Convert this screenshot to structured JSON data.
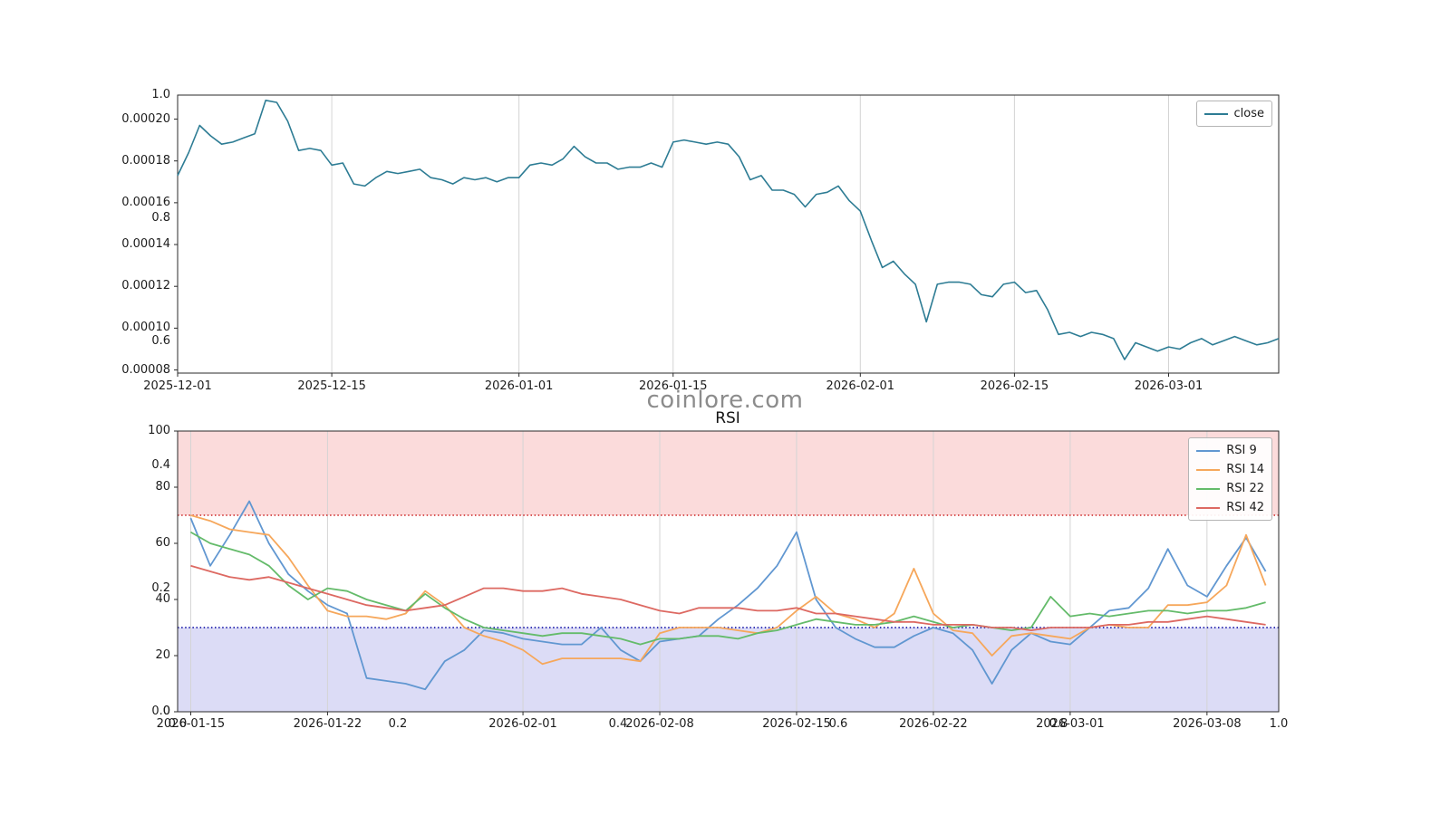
{
  "watermark": "coinlore.com",
  "rsi_title": "RSI",
  "colors": {
    "grid": "#d4d4d4",
    "frame": "#2a2a2a",
    "overbought_line": "#cc2222",
    "oversold_line": "#0000a0",
    "overbought_band": "#fbdbdb",
    "oversold_band": "#dcdcf6"
  },
  "overlay_axis": {
    "y_tick_labels": [
      "1.0",
      "0.8",
      "0.6",
      "0.4",
      "0.2",
      "0.0"
    ],
    "x_tick_labels": [
      "0.0",
      "0.2",
      "0.4",
      "0.6",
      "0.8",
      "1.0"
    ]
  },
  "chart_data": [
    {
      "type": "line",
      "title": "",
      "xlabel": "",
      "ylabel": "",
      "legend_position": "upper right",
      "grid": "vertical",
      "x_unit": "day",
      "x_start_date": "2025-12-01",
      "ylim": [
        7.85e-05,
        0.0002115
      ],
      "x_ticks": [
        {
          "label": "2025-12-01",
          "day": 0
        },
        {
          "label": "2025-12-15",
          "day": 14
        },
        {
          "label": "2026-01-01",
          "day": 31
        },
        {
          "label": "2026-01-15",
          "day": 45
        },
        {
          "label": "2026-02-01",
          "day": 62
        },
        {
          "label": "2026-02-15",
          "day": 76
        },
        {
          "label": "2026-03-01",
          "day": 90
        }
      ],
      "y_ticks": [
        {
          "label": "0.00008",
          "value": 8e-05
        },
        {
          "label": "0.00010",
          "value": 0.0001
        },
        {
          "label": "0.00012",
          "value": 0.00012
        },
        {
          "label": "0.00014",
          "value": 0.00014
        },
        {
          "label": "0.00016",
          "value": 0.00016
        },
        {
          "label": "0.00018",
          "value": 0.00018
        },
        {
          "label": "0.00020",
          "value": 0.0002
        }
      ],
      "series": [
        {
          "name": "close",
          "color": "#2d7c94",
          "values": [
            0.000173,
            0.000184,
            0.000197,
            0.000192,
            0.000188,
            0.000189,
            0.000191,
            0.000193,
            0.000209,
            0.000208,
            0.000199,
            0.000185,
            0.000186,
            0.000185,
            0.000178,
            0.000179,
            0.000169,
            0.000168,
            0.000172,
            0.000175,
            0.000174,
            0.000175,
            0.000176,
            0.000172,
            0.000171,
            0.000169,
            0.000172,
            0.000171,
            0.000172,
            0.00017,
            0.000172,
            0.000172,
            0.000178,
            0.000179,
            0.000178,
            0.000181,
            0.000187,
            0.000182,
            0.000179,
            0.000179,
            0.000176,
            0.000177,
            0.000177,
            0.000179,
            0.000177,
            0.000189,
            0.00019,
            0.000189,
            0.000188,
            0.000189,
            0.000188,
            0.000182,
            0.000171,
            0.000173,
            0.000166,
            0.000166,
            0.000164,
            0.000158,
            0.000164,
            0.000165,
            0.000168,
            0.000161,
            0.000156,
            0.000142,
            0.000129,
            0.000132,
            0.000126,
            0.000121,
            0.000103,
            0.000121,
            0.000122,
            0.000122,
            0.000121,
            0.000116,
            0.000115,
            0.000121,
            0.000122,
            0.000117,
            0.000118,
            0.000109,
            9.7e-05,
            9.8e-05,
            9.6e-05,
            9.8e-05,
            9.7e-05,
            9.5e-05,
            8.5e-05,
            9.3e-05,
            9.1e-05,
            8.9e-05,
            9.1e-05,
            9e-05,
            9.3e-05,
            9.5e-05,
            9.2e-05,
            9.4e-05,
            9.6e-05,
            9.4e-05,
            9.2e-05,
            9.3e-05,
            9.5e-05
          ]
        }
      ]
    },
    {
      "type": "line",
      "title": "RSI",
      "xlabel": "",
      "ylabel": "",
      "legend_position": "upper right",
      "grid": "vertical",
      "x_unit": "day",
      "x_start_date": "2026-01-15",
      "ylim": [
        0,
        100
      ],
      "overbought": 70,
      "oversold": 30,
      "x_ticks": [
        {
          "label": "2026-01-15",
          "day": 0
        },
        {
          "label": "2026-01-22",
          "day": 7
        },
        {
          "label": "2026-02-01",
          "day": 17
        },
        {
          "label": "2026-02-08",
          "day": 24
        },
        {
          "label": "2026-02-15",
          "day": 31
        },
        {
          "label": "2026-02-22",
          "day": 38
        },
        {
          "label": "2026-03-01",
          "day": 45
        },
        {
          "label": "2026-03-08",
          "day": 52
        }
      ],
      "y_ticks": [
        {
          "label": "0",
          "value": 0
        },
        {
          "label": "20",
          "value": 20
        },
        {
          "label": "40",
          "value": 40
        },
        {
          "label": "60",
          "value": 60
        },
        {
          "label": "80",
          "value": 80
        },
        {
          "label": "100",
          "value": 100
        }
      ],
      "series": [
        {
          "name": "RSI 9",
          "color": "#6197d1",
          "values": [
            69,
            52,
            63,
            75,
            60,
            49,
            43,
            38,
            35,
            12,
            11,
            10,
            8,
            18,
            22,
            29,
            28,
            26,
            25,
            24,
            24,
            30,
            22,
            18,
            25,
            26,
            27,
            33,
            38,
            44,
            52,
            64,
            40,
            30,
            26,
            23,
            23,
            27,
            30,
            28,
            22,
            10,
            22,
            28,
            25,
            24,
            30,
            36,
            37,
            44,
            58,
            45,
            41,
            52,
            62,
            50
          ]
        },
        {
          "name": "RSI 14",
          "color": "#f6a75b",
          "values": [
            70,
            68,
            65,
            64,
            63,
            55,
            45,
            36,
            34,
            34,
            33,
            35,
            43,
            38,
            30,
            27,
            25,
            22,
            17,
            19,
            19,
            19,
            19,
            18,
            28,
            30,
            30,
            30,
            29,
            28,
            30,
            36,
            41,
            35,
            33,
            30,
            35,
            51,
            35,
            29,
            28,
            20,
            27,
            28,
            27,
            26,
            30,
            31,
            30,
            30,
            38,
            38,
            39,
            45,
            63,
            45
          ]
        },
        {
          "name": "RSI 22",
          "color": "#64bb6a",
          "values": [
            64,
            60,
            58,
            56,
            52,
            45,
            40,
            44,
            43,
            40,
            38,
            36,
            42,
            37,
            33,
            30,
            29,
            28,
            27,
            28,
            28,
            27,
            26,
            24,
            26,
            26,
            27,
            27,
            26,
            28,
            29,
            31,
            33,
            32,
            31,
            31,
            32,
            34,
            32,
            30,
            31,
            30,
            29,
            30,
            41,
            34,
            35,
            34,
            35,
            36,
            36,
            35,
            36,
            36,
            37,
            39
          ]
        },
        {
          "name": "RSI 42",
          "color": "#dd6962",
          "values": [
            52,
            50,
            48,
            47,
            48,
            46,
            44,
            42,
            40,
            38,
            37,
            36,
            37,
            38,
            41,
            44,
            44,
            43,
            43,
            44,
            42,
            41,
            40,
            38,
            36,
            35,
            37,
            37,
            37,
            36,
            36,
            37,
            35,
            35,
            34,
            33,
            32,
            32,
            31,
            31,
            31,
            30,
            30,
            29,
            30,
            30,
            30,
            31,
            31,
            32,
            32,
            33,
            34,
            33,
            32,
            31
          ]
        }
      ]
    }
  ]
}
